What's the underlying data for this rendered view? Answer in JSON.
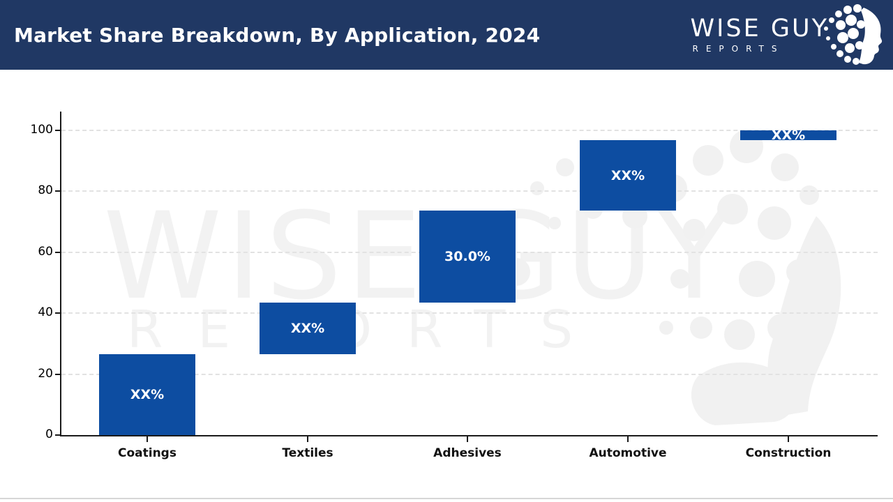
{
  "header": {
    "title": "Market Share Breakdown, By Application, 2024",
    "bg_color": "#203864",
    "logo": {
      "line1": "WISE GUY",
      "line2": "REPORTS"
    }
  },
  "watermark": {
    "line1": "WISE GUY",
    "line2": "REPORTS"
  },
  "chart_data": {
    "type": "bar",
    "subtype": "waterfall",
    "title": "Market Share Breakdown, By Application, 2024",
    "categories": [
      "Coatings",
      "Textiles",
      "Adhesives",
      "Automotive",
      "Construction"
    ],
    "segments": [
      {
        "category": "Coatings",
        "start": 0,
        "end": 26.5,
        "label": "XX%"
      },
      {
        "category": "Textiles",
        "start": 26.5,
        "end": 43.5,
        "label": "XX%"
      },
      {
        "category": "Adhesives",
        "start": 43.5,
        "end": 73.5,
        "label": "30.0%"
      },
      {
        "category": "Automotive",
        "start": 73.5,
        "end": 96.7,
        "label": "XX%"
      },
      {
        "category": "Construction",
        "start": 96.7,
        "end": 100,
        "label": "XX%"
      }
    ],
    "known_value_label": "30.0%",
    "masked_value_label": "XX%",
    "ylim": [
      0,
      106
    ],
    "yticks": [
      0,
      20,
      40,
      60,
      80,
      100
    ],
    "xlabel": "",
    "ylabel": "",
    "grid": "dashed horizontal",
    "legend": "none",
    "bar_color": "#0d4da1",
    "axis_color": "#1a1a1a",
    "gridline_color": "#e2e2e2"
  }
}
